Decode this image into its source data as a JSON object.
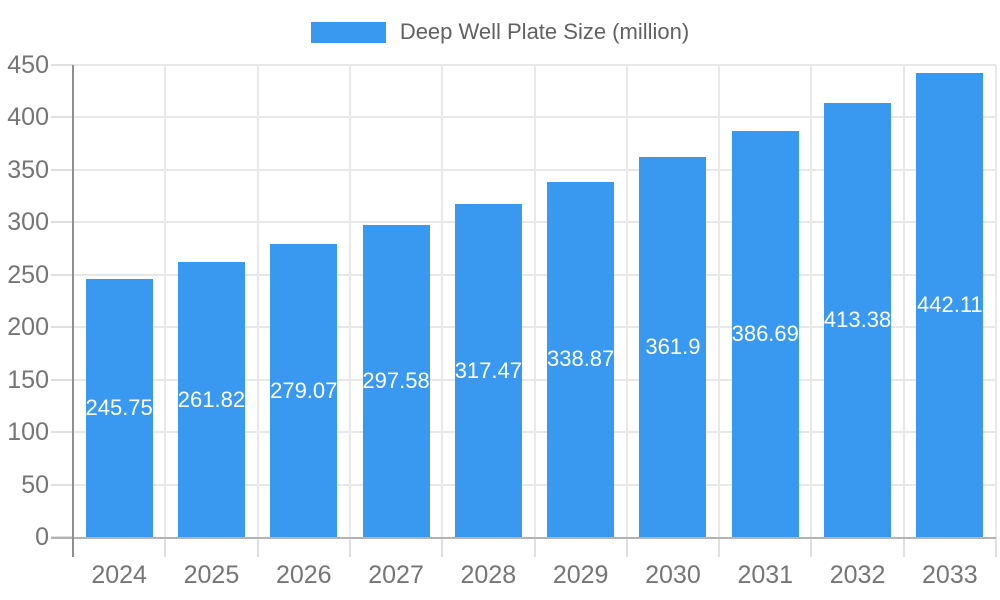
{
  "chart_data": {
    "type": "bar",
    "title": "Deep Well Plate Size (million)",
    "categories": [
      "2024",
      "2025",
      "2026",
      "2027",
      "2028",
      "2029",
      "2030",
      "2031",
      "2032",
      "2033"
    ],
    "values": [
      245.75,
      261.82,
      279.07,
      297.58,
      317.47,
      338.87,
      361.9,
      386.69,
      413.38,
      442.11
    ],
    "xlabel": "",
    "ylabel": "",
    "ylim": [
      0,
      450
    ],
    "ytick_step": 50,
    "grid": true,
    "legend_position": "top-center",
    "value_label_position": "inside-center-of-bar",
    "colors": {
      "bar": "#3998F0",
      "value_label": "#FFFFFF",
      "axis_label": "#757575",
      "legend_text": "#616161",
      "gridline": "#E8E8E8",
      "tick": "#E0E0E0",
      "y_axis_line": "#8F8F8F",
      "x_axis_line": "#B3B3B3",
      "background": "#FFFFFF"
    }
  }
}
